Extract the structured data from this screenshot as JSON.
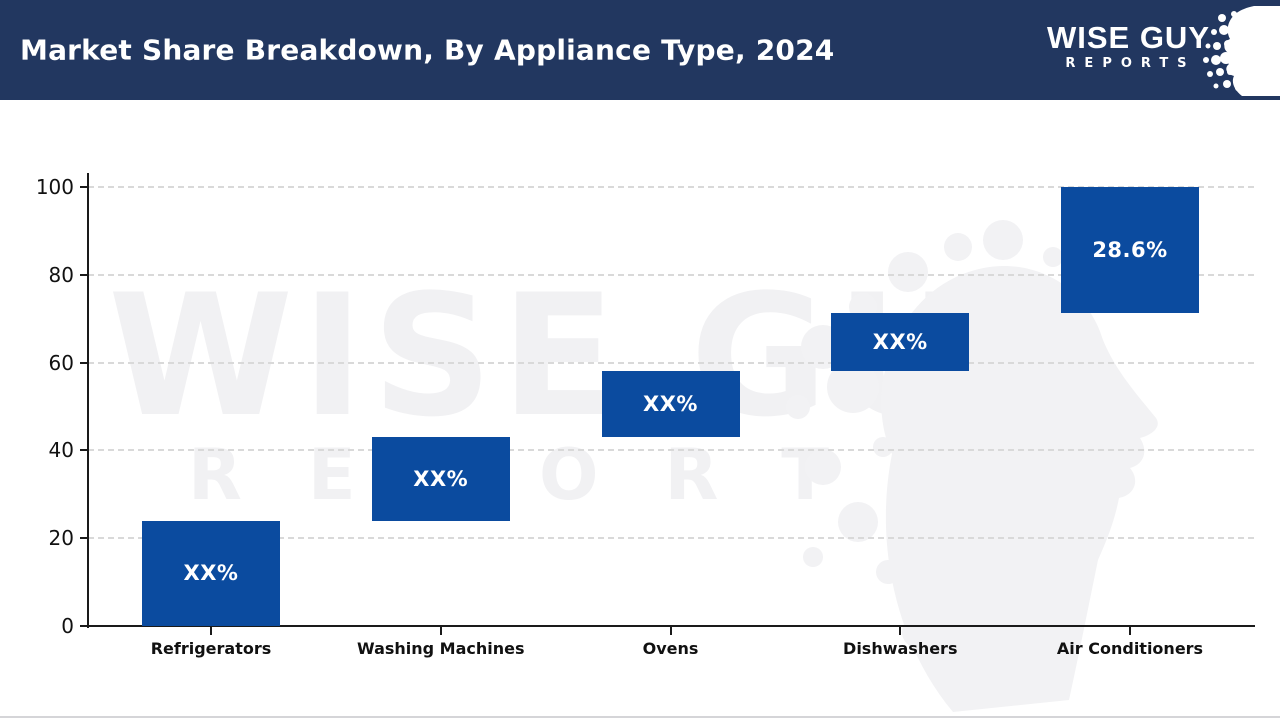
{
  "header": {
    "title": "Market Share Breakdown, By Appliance Type, 2024"
  },
  "logo": {
    "line1": "WISE GUY",
    "line2": "REPORTS"
  },
  "watermark": {
    "line1": "WISE GUY",
    "line2": "REPORTS"
  },
  "colors": {
    "header_bg": "#223760",
    "bar_fill": "#0b4b9f",
    "bar_label_text": "#ffffff",
    "grid_line": "#d9d9d9",
    "axis_line": "#1a1a1a",
    "watermark": "#f1f1f3",
    "title_text": "#ffffff"
  },
  "chart_data": {
    "type": "bar",
    "variant": "waterfall",
    "title": "Market Share Breakdown, By Appliance Type, 2024",
    "xlabel": "",
    "ylabel": "",
    "ylim": [
      0,
      105
    ],
    "yticks": [
      0,
      20,
      40,
      60,
      80,
      100
    ],
    "grid": "horizontal-dashed",
    "legend": "none",
    "categories": [
      "Refrigerators",
      "Washing Machines",
      "Ovens",
      "Dishwashers",
      "Air Conditioners"
    ],
    "segments": [
      {
        "category": "Refrigerators",
        "start": 0,
        "end": 24,
        "size": 24,
        "label": "XX%"
      },
      {
        "category": "Washing Machines",
        "start": 24,
        "end": 43,
        "size": 19,
        "label": "XX%"
      },
      {
        "category": "Ovens",
        "start": 43,
        "end": 58,
        "size": 15,
        "label": "XX%"
      },
      {
        "category": "Dishwashers",
        "start": 58,
        "end": 71.4,
        "size": 13.4,
        "label": "XX%"
      },
      {
        "category": "Air Conditioners",
        "start": 71.4,
        "end": 100,
        "size": 28.6,
        "label": "28.6%"
      }
    ]
  }
}
